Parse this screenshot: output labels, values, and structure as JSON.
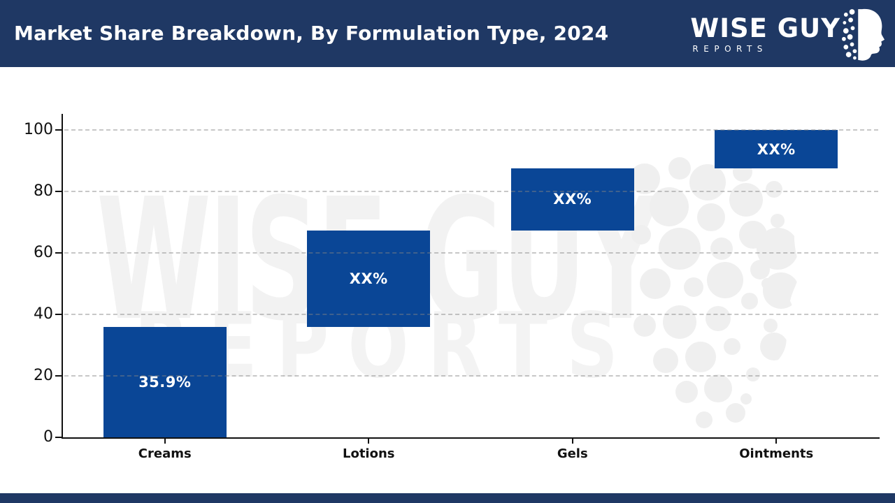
{
  "header": {
    "title": "Market Share Breakdown, By Formulation Type, 2024",
    "logo": {
      "wordmark": "WISE GUY",
      "subtitle": "REPORTS"
    }
  },
  "watermark": {
    "wordmark": "WISE GUY",
    "subtitle": "REPORTS"
  },
  "colors": {
    "header_bg": "#1f3864",
    "footer_bg": "#1f3864",
    "bar": "#0a4696",
    "bar_label_text": "#ffffff",
    "grid": "#cccccc",
    "axis": "#111111",
    "title_text": "#ffffff",
    "watermark": "#f2f2f2"
  },
  "chart_data": {
    "type": "bar",
    "subtype": "waterfall",
    "title": "Market Share Breakdown, By Formulation Type, 2024",
    "categories": [
      "Creams",
      "Lotions",
      "Gels",
      "Ointments"
    ],
    "segments": [
      {
        "category": "Creams",
        "start": 0,
        "end": 35.9,
        "label": "35.9%"
      },
      {
        "category": "Lotions",
        "start": 35.9,
        "end": 67.3,
        "label": "XX%"
      },
      {
        "category": "Gels",
        "start": 67.3,
        "end": 87.5,
        "label": "XX%"
      },
      {
        "category": "Ointments",
        "start": 87.5,
        "end": 100,
        "label": "XX%"
      }
    ],
    "xlabel": "",
    "ylabel": "",
    "ylim": [
      0,
      105
    ],
    "yticks": [
      0,
      20,
      40,
      60,
      80,
      100
    ],
    "grid": true,
    "grid_style": "dashed",
    "legend": false,
    "bar_labels_visible": true
  }
}
